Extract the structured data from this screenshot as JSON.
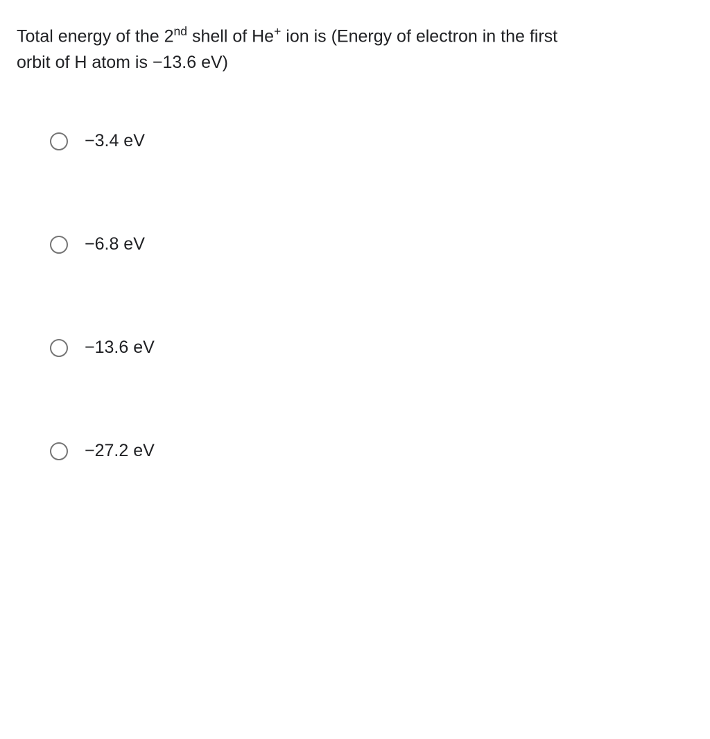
{
  "question": {
    "line1_part1": "Total energy of the 2",
    "line1_sup1": "nd",
    "line1_part2": " shell of He",
    "line1_sup2": "+",
    "line1_part3": " ion is (Energy of electron in the first",
    "line2": "orbit of H atom is −13.6 eV)"
  },
  "options": [
    {
      "label": "−3.4 eV"
    },
    {
      "label": "−6.8 eV"
    },
    {
      "label": "−13.6 eV"
    },
    {
      "label": "−27.2 eV"
    }
  ],
  "styling": {
    "font_family": "Arial, Helvetica, sans-serif",
    "question_fontsize": 25,
    "option_fontsize": 25,
    "text_color": "#202124",
    "radio_border_color": "#757575",
    "background_color": "#ffffff",
    "radio_size": 26,
    "radio_border_width": 2,
    "option_vertical_gap": 120,
    "options_left_padding": 48
  }
}
